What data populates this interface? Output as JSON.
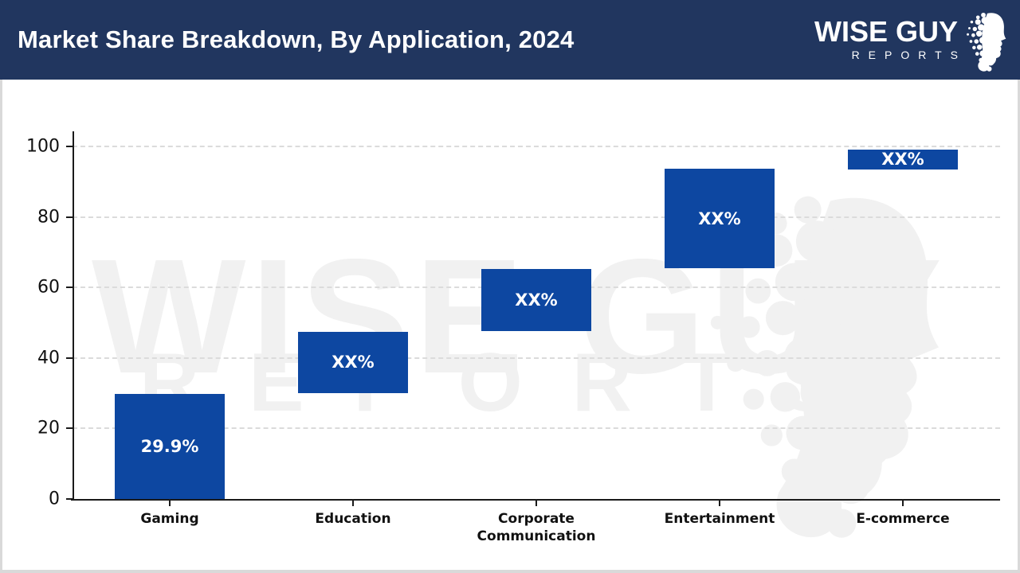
{
  "header": {
    "title": "Market Share Breakdown, By Application, 2024",
    "logo": {
      "line1": "WISE GUY",
      "line2": "REPORTS"
    }
  },
  "watermark": {
    "line1": "WISE GUY",
    "line2": "REPORTS"
  },
  "colors": {
    "header_bg": "#21365F",
    "bar_blue": "#0D47A1",
    "grid_gray": "#DBDBDB",
    "watermark_gray": "#F1F1F1",
    "frame_gray": "#D9D9D9"
  },
  "chart_data": {
    "type": "bar",
    "subtype": "waterfall",
    "title": "Market Share Breakdown, By Application, 2024",
    "xlabel": "",
    "ylabel": "",
    "ylim": [
      0,
      104
    ],
    "y_ticks": [
      0,
      20,
      40,
      60,
      80,
      100
    ],
    "grid": "horizontal-dashed",
    "legend": "none",
    "categories": [
      "Gaming",
      "Education",
      "Corporate Communication",
      "Entertainment",
      "E-commerce"
    ],
    "bars": [
      {
        "category": "Gaming",
        "start": 0.0,
        "end": 29.9,
        "value_label": "29.9%"
      },
      {
        "category": "Education",
        "start": 30.0,
        "end": 47.5,
        "value_label": "XX%"
      },
      {
        "category": "Corporate Communication",
        "start": 47.6,
        "end": 65.2,
        "value_label": "XX%"
      },
      {
        "category": "Entertainment",
        "start": 65.5,
        "end": 93.7,
        "value_label": "XX%"
      },
      {
        "category": "E-commerce",
        "start": 93.6,
        "end": 99.2,
        "value_label": "XX%"
      }
    ]
  }
}
